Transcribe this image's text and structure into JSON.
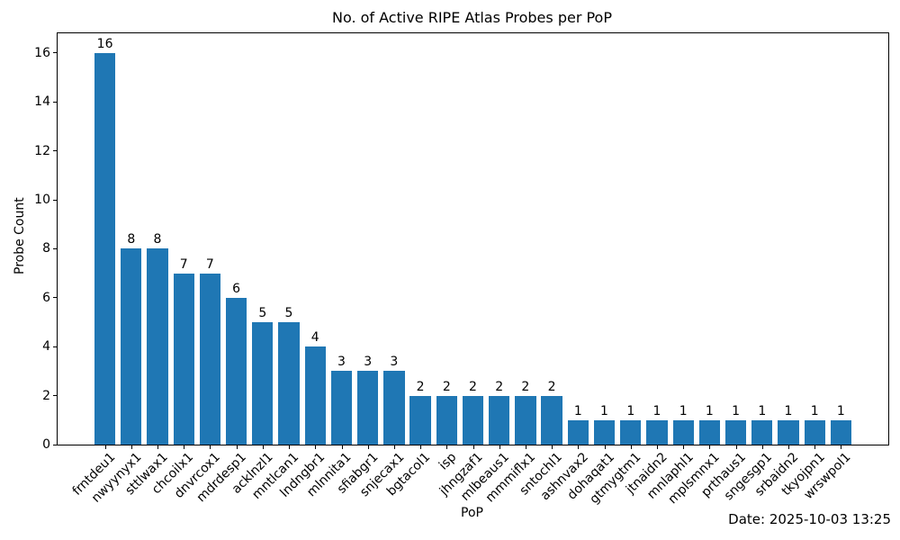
{
  "annotations": {
    "date": "Date: 2025-10-03 13:25"
  },
  "chart_data": {
    "type": "bar",
    "title": "No. of Active RIPE Atlas Probes per PoP",
    "xlabel": "PoP",
    "ylabel": "Probe Count",
    "categories": [
      "frntdeu1",
      "nwyynyx1",
      "sttlwax1",
      "chcoilx1",
      "dnvrcox1",
      "mdrdesp1",
      "acklnzl1",
      "mntlcan1",
      "lndngbr1",
      "mlnnita1",
      "sfiabgr1",
      "snjecax1",
      "bgtacol1",
      "isp",
      "jhngzaf1",
      "mlbeaus1",
      "mmmiflx1",
      "sntochl1",
      "ashnvax2",
      "dohaqat1",
      "gtmygtm1",
      "jtnaidn2",
      "mnlaphl1",
      "mplsmnx1",
      "prthaus1",
      "sngesgp1",
      "srbaidn2",
      "tkyojpn1",
      "wrswpol1"
    ],
    "values": [
      16,
      8,
      8,
      7,
      7,
      6,
      5,
      5,
      4,
      3,
      3,
      3,
      2,
      2,
      2,
      2,
      2,
      2,
      1,
      1,
      1,
      1,
      1,
      1,
      1,
      1,
      1,
      1,
      1
    ],
    "yticks": [
      0,
      2,
      4,
      6,
      8,
      10,
      12,
      14,
      16
    ],
    "ylim": [
      0,
      16.8
    ],
    "bar_color": "#1f77b4",
    "spine_color": "#000000",
    "x_tick_rotation": 45,
    "value_labels_shown": true,
    "grid": false,
    "legend": "none"
  }
}
